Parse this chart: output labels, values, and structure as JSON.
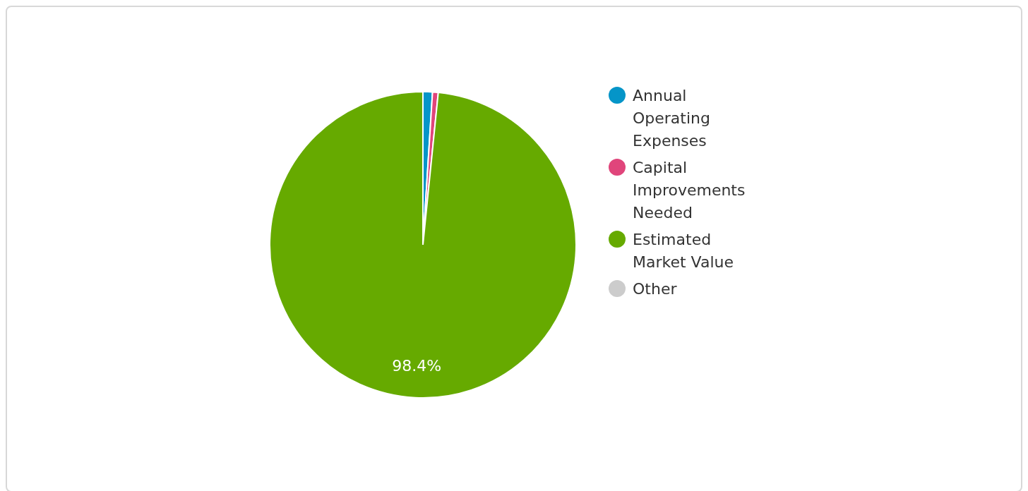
{
  "chart_data": {
    "type": "pie",
    "categories": [
      "Annual Operating Expenses",
      "Capital Improvements Needed",
      "Estimated Market Value",
      "Other"
    ],
    "values": [
      1.0,
      0.6,
      98.4,
      0
    ],
    "colors": [
      "#0595c8",
      "#e0457b",
      "#66aa00",
      "#cccccc"
    ],
    "value_labels": [
      null,
      null,
      "98.4%",
      null
    ],
    "legend": "right"
  }
}
